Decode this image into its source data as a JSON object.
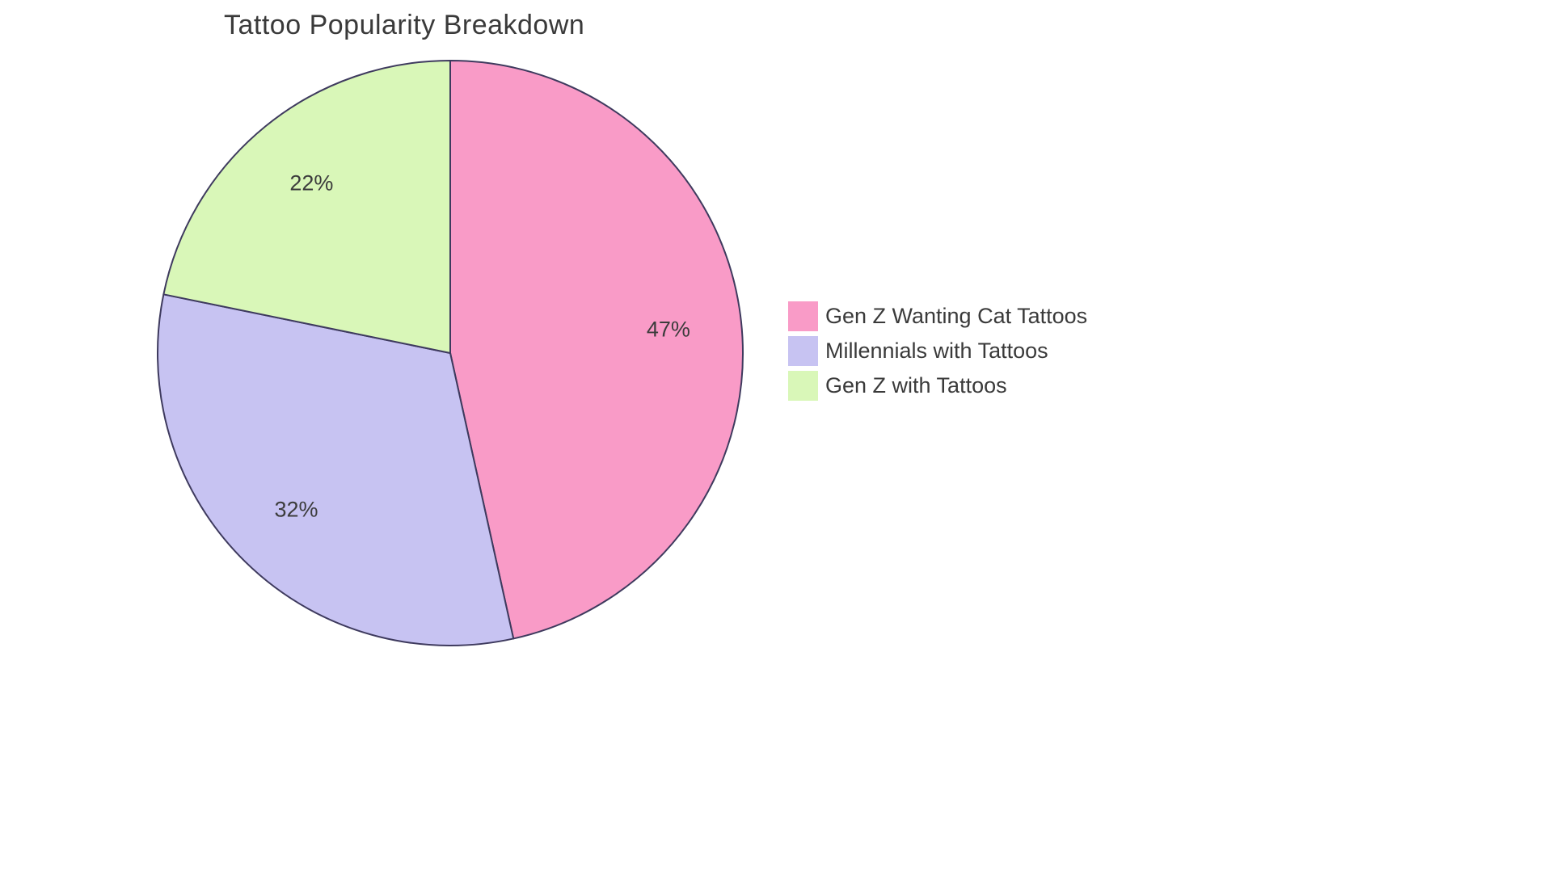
{
  "chart_data": {
    "type": "pie",
    "title": "Tattoo Popularity Breakdown",
    "labels": [
      "Gen Z Wanting Cat Tattoos",
      "Millennials with Tattoos",
      "Gen Z with Tattoos"
    ],
    "values": [
      47,
      32,
      22
    ],
    "value_labels": [
      "47%",
      "32%",
      "22%"
    ],
    "colors": [
      "#F99BC7",
      "#C7C3F2",
      "#D9F7B8"
    ],
    "slice_stroke": "#3E3A5E",
    "text_color": "#3c3c3c",
    "start_angle": "top",
    "direction": "clockwise",
    "legend_position": "right",
    "label_distance": 0.75
  }
}
